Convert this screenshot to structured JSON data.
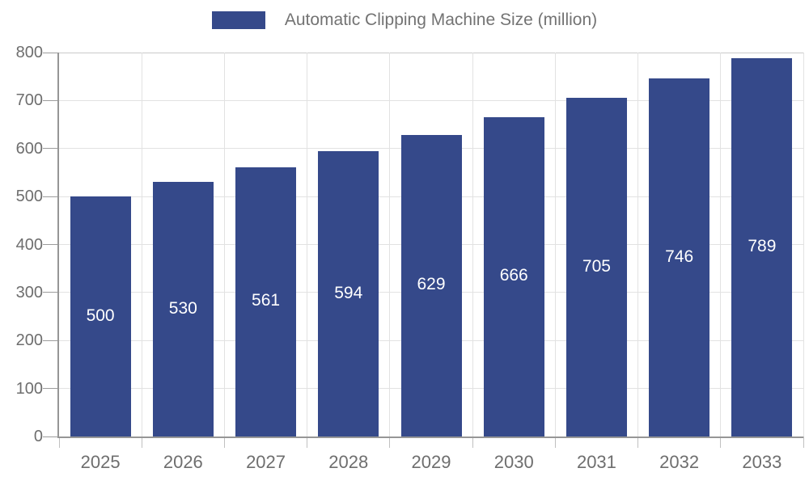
{
  "legend": {
    "label": "Automatic Clipping Machine Size (million)"
  },
  "chart_data": {
    "type": "bar",
    "title": "Automatic Clipping Machine Size (million)",
    "categories": [
      "2025",
      "2026",
      "2027",
      "2028",
      "2029",
      "2030",
      "2031",
      "2032",
      "2033"
    ],
    "values": [
      500,
      530,
      561,
      594,
      629,
      666,
      705,
      746,
      789
    ],
    "xlabel": "",
    "ylabel": "",
    "ylim": [
      0,
      800
    ],
    "ytick_step": 100,
    "grid": true,
    "legend_position": "top",
    "bar_color": "#35498a",
    "value_label_color": "#ffffff",
    "axis_text_color": "#6e6e6e",
    "gridline_color": "#e2e2e2",
    "top_gridline_color": "#c9c9c9",
    "axis_line_color": "#969696"
  }
}
